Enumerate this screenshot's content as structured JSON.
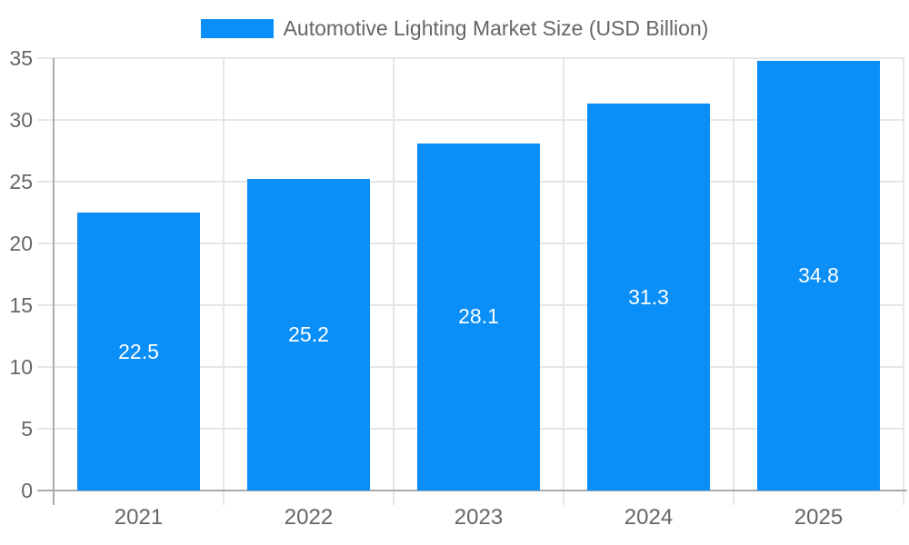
{
  "legend": {
    "label": "Automotive Lighting Market Size (USD Billion)"
  },
  "chart_data": {
    "type": "bar",
    "title": "Automotive Lighting Market Size (USD Billion)",
    "categories": [
      "2021",
      "2022",
      "2023",
      "2024",
      "2025"
    ],
    "values": [
      22.5,
      25.2,
      28.1,
      31.3,
      34.8
    ],
    "value_labels": [
      "22.5",
      "25.2",
      "28.1",
      "31.3",
      "34.8"
    ],
    "xlabel": "",
    "ylabel": "",
    "ylim": [
      0,
      35
    ],
    "yticks": [
      0,
      5,
      10,
      15,
      20,
      25,
      30,
      35
    ],
    "grid": true,
    "legend_position": "top-center",
    "value_label_position": "inside-center"
  },
  "colors": {
    "bar": "#0a8ef8",
    "axis_line": "#ababab",
    "grid_line": "#e6e6e6",
    "tick_text": "#666666",
    "legend_text": "#666666",
    "value_label_text": "#ffffff",
    "background": "#ffffff"
  }
}
